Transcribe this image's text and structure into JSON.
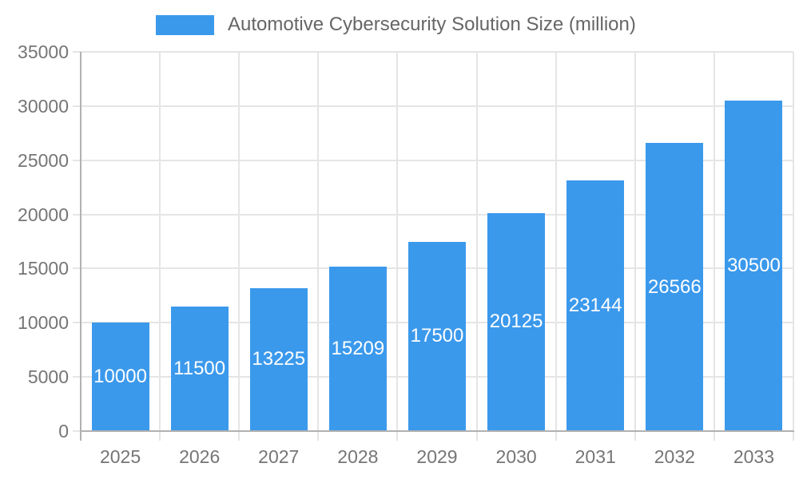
{
  "chart_data": {
    "type": "bar",
    "title": "Automotive Cybersecurity Solution Size (million)",
    "legend": {
      "position": "top",
      "entries": [
        "Automotive Cybersecurity Solution Size (million)"
      ]
    },
    "categories": [
      "2025",
      "2026",
      "2027",
      "2028",
      "2029",
      "2030",
      "2031",
      "2032",
      "2033"
    ],
    "series": [
      {
        "name": "Automotive Cybersecurity Solution Size (million)",
        "values": [
          10000,
          11500,
          13225,
          15209,
          17500,
          20125,
          23144,
          26566,
          30500
        ]
      }
    ],
    "value_labels": [
      "10000",
      "11500",
      "13225",
      "15209",
      "17500",
      "20125",
      "23144",
      "26566",
      "30500"
    ],
    "xlabel": "",
    "ylabel": "",
    "ylim": [
      0,
      35000
    ],
    "yticks": [
      0,
      5000,
      10000,
      15000,
      20000,
      25000,
      30000,
      35000
    ],
    "ytick_labels": [
      "0",
      "5000",
      "10000",
      "15000",
      "20000",
      "25000",
      "30000",
      "35000"
    ],
    "grid": true,
    "bar_color": "#3B99EC",
    "value_label_color": "#ffffff",
    "axis_label_color": "#757575",
    "legend_text_color": "#666666",
    "gridline_color": "#e5e5e5",
    "axis_line_color": "#b1b1b1",
    "background_color": "#ffffff"
  }
}
